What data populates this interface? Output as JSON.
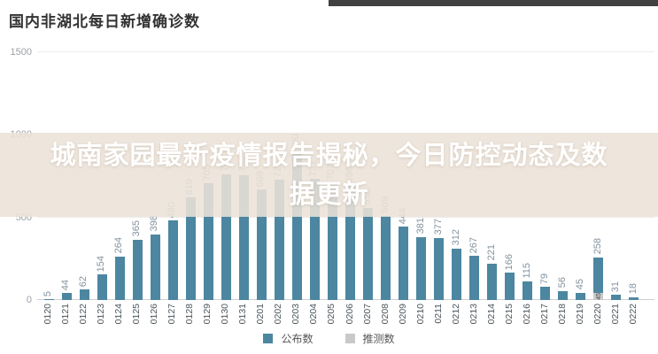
{
  "top_strip": {
    "color": "#414141"
  },
  "title": "国内非湖北每日新增确诊数",
  "overlay": {
    "line1": "城南家园最新疫情报告揭秘，今日防控动态及数",
    "line2": "据更新",
    "background": "#ece3d7",
    "text_color": "#ffffff"
  },
  "legend": {
    "published_label": "公布数",
    "estimated_label": "推测数",
    "published_color": "#4d86a0",
    "estimated_color": "#c9c9c9"
  },
  "chart_data": {
    "type": "bar",
    "title": "国内非湖北每日新增确诊数",
    "categories": [
      "0120",
      "0121",
      "0122",
      "0123",
      "0124",
      "0125",
      "0126",
      "0127",
      "0128",
      "0129",
      "0130",
      "0131",
      "0201",
      "0202",
      "0203",
      "0204",
      "0205",
      "0206",
      "0207",
      "0208",
      "0209",
      "0210",
      "0211",
      "0212",
      "0213",
      "0214",
      "0215",
      "0216",
      "0217",
      "0218",
      "0219",
      "0220",
      "0221",
      "0222"
    ],
    "series": [
      {
        "name": "公布数",
        "color": "#4d86a0",
        "values": [
          5,
          44,
          62,
          154,
          264,
          365,
          398,
          480,
          619,
          705,
          762,
          755,
          669,
          726,
          890,
          731,
          707,
          696,
          558,
          509,
          444,
          381,
          377,
          312,
          267,
          221,
          166,
          115,
          79,
          56,
          45,
          258,
          31,
          18
        ]
      },
      {
        "name": "推测数",
        "color": "#c9c9c9",
        "values": [
          0,
          0,
          0,
          0,
          0,
          0,
          0,
          0,
          0,
          0,
          0,
          0,
          0,
          0,
          0,
          0,
          0,
          0,
          0,
          0,
          0,
          0,
          0,
          0,
          0,
          0,
          0,
          0,
          0,
          0,
          0,
          45,
          0,
          0
        ]
      }
    ],
    "ylim": [
      0,
      1500
    ],
    "yticks": [
      "0",
      "500",
      "1000",
      "1500"
    ],
    "grid": true,
    "legend_position": "bottom",
    "bar_labels_shown": true
  }
}
